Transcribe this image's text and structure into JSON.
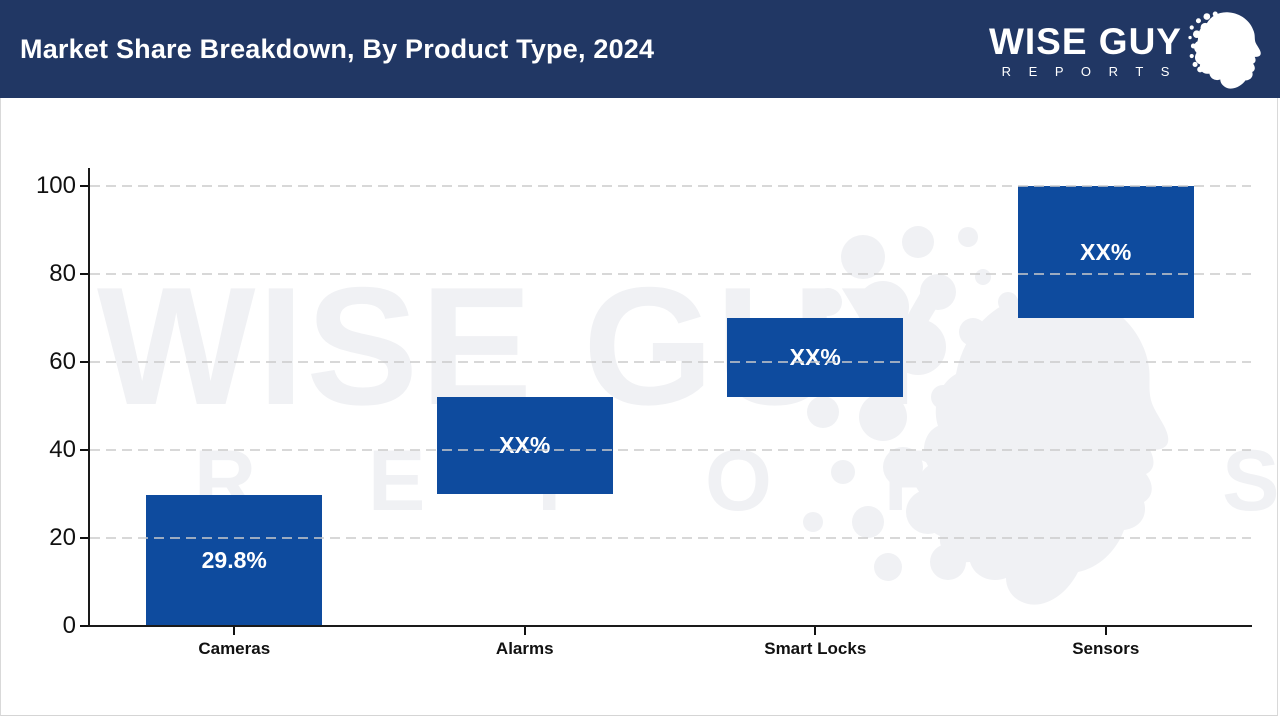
{
  "header": {
    "title": "Market Share Breakdown, By Product Type, 2024",
    "background_color": "#213764",
    "logo": {
      "line1": "WISE GUY",
      "line2": "R E P O R T S"
    }
  },
  "watermark": {
    "line1": "WISE GUY",
    "line2": "R E P O R T S"
  },
  "chart_data": {
    "type": "bar",
    "variant": "waterfall",
    "title": "Market Share Breakdown, By Product Type, 2024",
    "categories": [
      "Cameras",
      "Alarms",
      "Smart Locks",
      "Sensors"
    ],
    "segments": [
      {
        "category": "Cameras",
        "start": 0,
        "end": 29.8,
        "label": "29.8%"
      },
      {
        "category": "Alarms",
        "start": 30,
        "end": 52,
        "label": "XX%"
      },
      {
        "category": "Smart Locks",
        "start": 52,
        "end": 70,
        "label": "XX%"
      },
      {
        "category": "Sensors",
        "start": 70,
        "end": 100,
        "label": "XX%"
      }
    ],
    "yticks": [
      0,
      20,
      40,
      60,
      80,
      100
    ],
    "ylim": [
      0,
      100
    ],
    "xlabel": "",
    "ylabel": "",
    "unit": "%",
    "grid": {
      "axis": "y",
      "style": "dashed",
      "color": "#d9d9d9"
    },
    "legend": null,
    "bar_color": "#0e4b9e",
    "bar_label_color": "#ffffff",
    "axis_color": "#1a1a1a"
  }
}
